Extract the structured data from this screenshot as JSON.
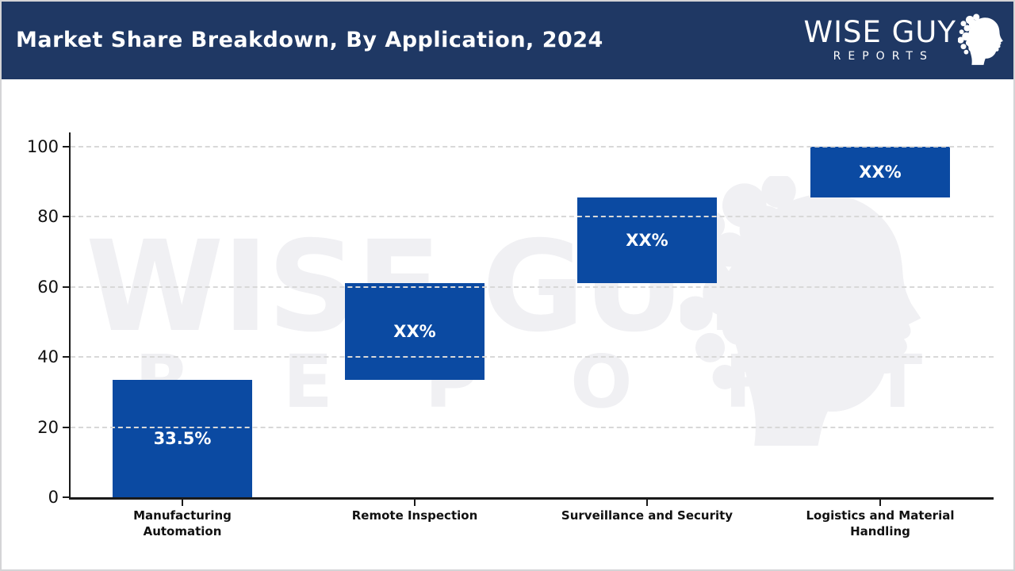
{
  "header": {
    "title": "Market Share Breakdown, By Application, 2024",
    "logo": {
      "line1": "WISE GUY",
      "line2": "REPORTS"
    }
  },
  "watermark": {
    "line1": "WISE GUY",
    "line2": "REPORTS"
  },
  "colors": {
    "header_bg": "#1f3864",
    "bar": "#0b4aa2",
    "bar_label": "#ffffff",
    "gridline": "#d8d8d8",
    "axis": "#1a1a1a",
    "watermark": "#f0f0f3"
  },
  "chart_data": {
    "type": "bar",
    "variant": "waterfall",
    "title": "Market Share Breakdown, By Application, 2024",
    "categories": [
      "Manufacturing Automation",
      "Remote Inspection",
      "Surveillance and Security",
      "Logistics and Material Handling"
    ],
    "series": [
      {
        "name": "Market Share",
        "segments": [
          {
            "category": "Manufacturing Automation",
            "start": 0,
            "end": 33.5,
            "label": "33.5%"
          },
          {
            "category": "Remote Inspection",
            "start": 33.5,
            "end": 61,
            "label": "XX%"
          },
          {
            "category": "Surveillance and Security",
            "start": 61,
            "end": 85.5,
            "label": "XX%"
          },
          {
            "category": "Logistics and Material Handling",
            "start": 85.5,
            "end": 100,
            "label": "XX%"
          }
        ]
      }
    ],
    "xlabel": "",
    "ylabel": "",
    "ylim": [
      0,
      100
    ],
    "yticks": [
      0,
      20,
      40,
      60,
      80,
      100
    ],
    "grid": "horizontal-dashed",
    "legend": "none"
  }
}
